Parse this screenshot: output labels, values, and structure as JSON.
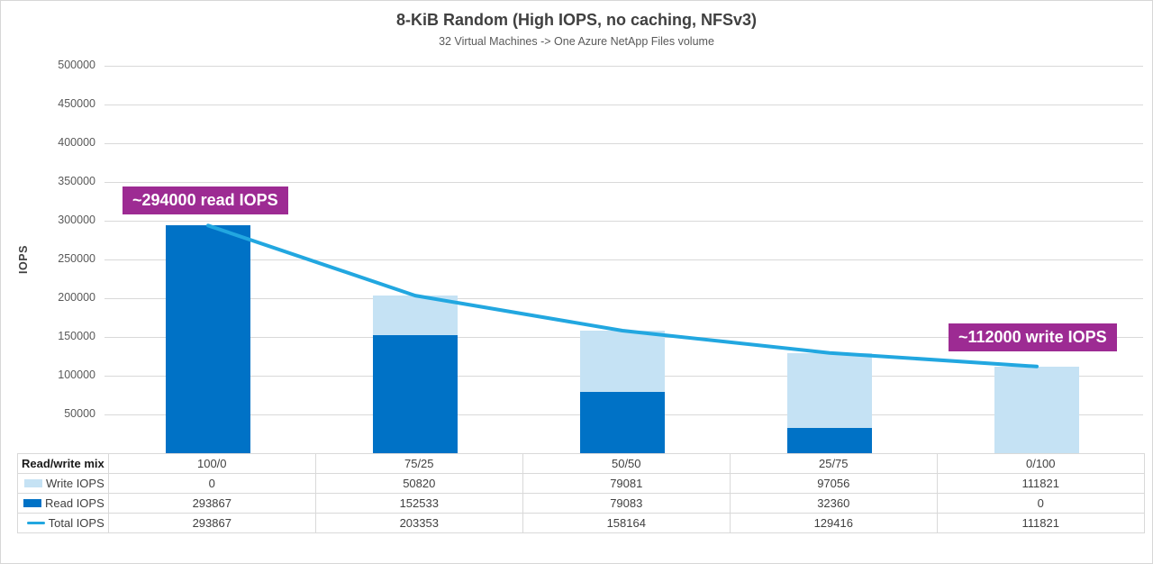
{
  "chart_data": {
    "type": "bar",
    "combo": "stacked-bar-with-line",
    "title": "8-KiB Random (High IOPS, no caching, NFSv3)",
    "subtitle": "32 Virtual Machines -> One Azure NetApp Files volume",
    "ylabel": "IOPS",
    "ylim": [
      0,
      500000
    ],
    "ytick_step": 50000,
    "yticks": [
      "500000",
      "450000",
      "400000",
      "350000",
      "300000",
      "250000",
      "200000",
      "150000",
      "100000",
      "50000"
    ],
    "grid": true,
    "legend_position": "table-left",
    "row_header": "Read/write mix",
    "categories": [
      "100/0",
      "75/25",
      "50/50",
      "25/75",
      "0/100"
    ],
    "series": [
      {
        "name": "Write IOPS",
        "type": "bar",
        "color": "#c5e2f4",
        "values": [
          0,
          50820,
          79081,
          97056,
          111821
        ]
      },
      {
        "name": "Read IOPS",
        "type": "bar",
        "color": "#0072c6",
        "values": [
          293867,
          152533,
          79083,
          32360,
          0
        ]
      },
      {
        "name": "Total IOPS",
        "type": "line",
        "color": "#22a7e0",
        "values": [
          293867,
          203353,
          158164,
          129416,
          111821
        ]
      }
    ],
    "annotations": [
      {
        "text": "~294000 read IOPS"
      },
      {
        "text": "~112000 write IOPS"
      }
    ],
    "colors": {
      "annotation_bg": "#9d2b93",
      "annotation_text": "#ffffff",
      "gridline": "#d9d9d9",
      "title_text": "#404040",
      "axis_text": "#595959"
    }
  }
}
